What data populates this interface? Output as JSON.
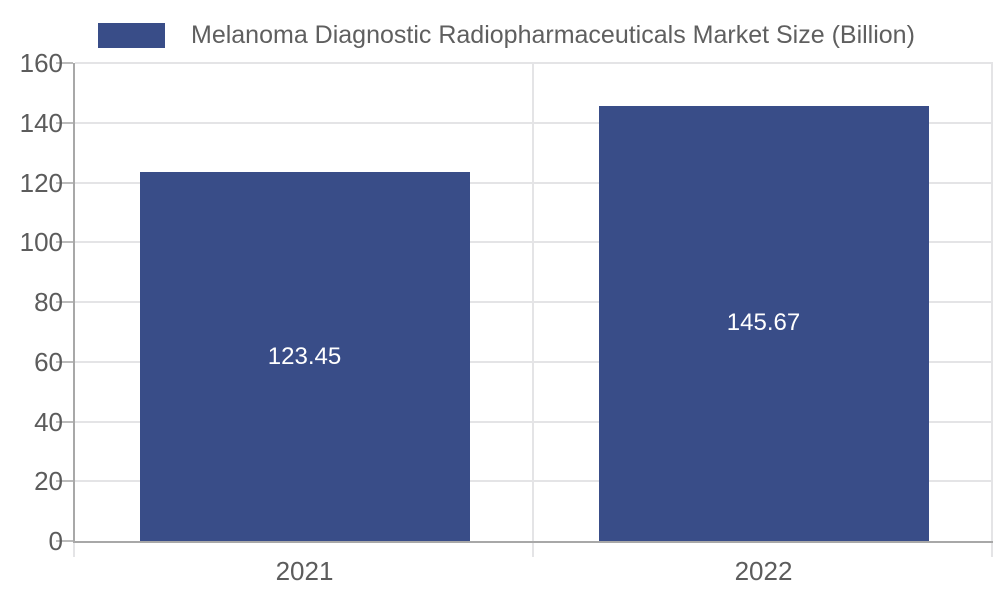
{
  "legend": {
    "label": "Melanoma Diagnostic Radiopharmaceuticals Market Size (Billion)"
  },
  "chart_data": {
    "type": "bar",
    "title": "Melanoma Diagnostic Radiopharmaceuticals Market Size (Billion)",
    "categories": [
      "2021",
      "2022"
    ],
    "values": [
      123.45,
      145.67
    ],
    "value_labels": [
      "123.45",
      "145.67"
    ],
    "series": [
      {
        "name": "Melanoma Diagnostic Radiopharmaceuticals Market Size (Billion)",
        "values": [
          123.45,
          145.67
        ]
      }
    ],
    "xlabel": "",
    "ylabel": "",
    "ylim": [
      0,
      160
    ],
    "yticks": [
      0,
      20,
      40,
      60,
      80,
      100,
      120,
      140,
      160
    ],
    "grid": true,
    "legend_position": "top-left",
    "value_label_position": "inside-center"
  },
  "colors": {
    "background": "#ffffff",
    "bar": "#394d88",
    "grid": "#e4e4e6",
    "axis": "#a8a8a8",
    "axis_tick": "#bcbcbc",
    "tick_text": "#5c5c5c",
    "legend_text": "#5f5f5f",
    "value_text": "#ffffff"
  }
}
